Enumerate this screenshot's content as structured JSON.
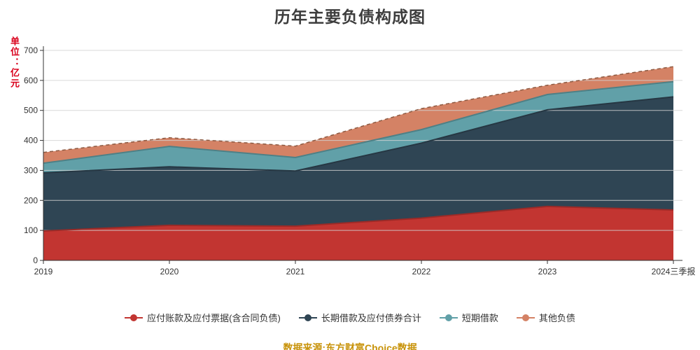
{
  "title": "历年主要负债构成图",
  "y_axis": {
    "unit_label": "单位：亿元",
    "unit_color": "#d9001b",
    "ticks": [
      0,
      100,
      200,
      300,
      400,
      500,
      600,
      700
    ]
  },
  "x_axis": {
    "labels": [
      "2019",
      "2020",
      "2021",
      "2022",
      "2023",
      "2024三季报"
    ]
  },
  "watermark": {
    "text": "数据来源:东方财富Choice数据",
    "color": "#c8930a"
  },
  "style_colors": {
    "axis": "#333333",
    "gridline": "#d2d2d2",
    "title": "#3d3d3d",
    "legend_text": "#333333"
  },
  "chart_data": {
    "type": "area",
    "stacked": true,
    "title": "历年主要负债构成图",
    "xlabel": "",
    "ylabel": "单位：亿元",
    "ylim": [
      0,
      700
    ],
    "grid": true,
    "legend_position": "bottom",
    "x": [
      "2019",
      "2020",
      "2021",
      "2022",
      "2023",
      "2024三季报"
    ],
    "series": [
      {
        "name": "应付账款及应付票据(含合同负债)",
        "color": "#c23531",
        "values": [
          98,
          117,
          114,
          141,
          180,
          168
        ]
      },
      {
        "name": "长期借款及应付债券合计",
        "color": "#2f4554",
        "values": [
          194,
          195,
          184,
          250,
          322,
          377
        ]
      },
      {
        "name": "短期借款",
        "color": "#61a0a8",
        "values": [
          32,
          68,
          45,
          45,
          51,
          51
        ]
      },
      {
        "name": "其他负债",
        "color": "#d48265",
        "line_color": "#8d5a42",
        "line_dash": true,
        "values": [
          36,
          29,
          38,
          70,
          31,
          50
        ]
      }
    ],
    "stacked_totals": [
      360,
      409,
      381,
      506,
      584,
      646
    ]
  }
}
